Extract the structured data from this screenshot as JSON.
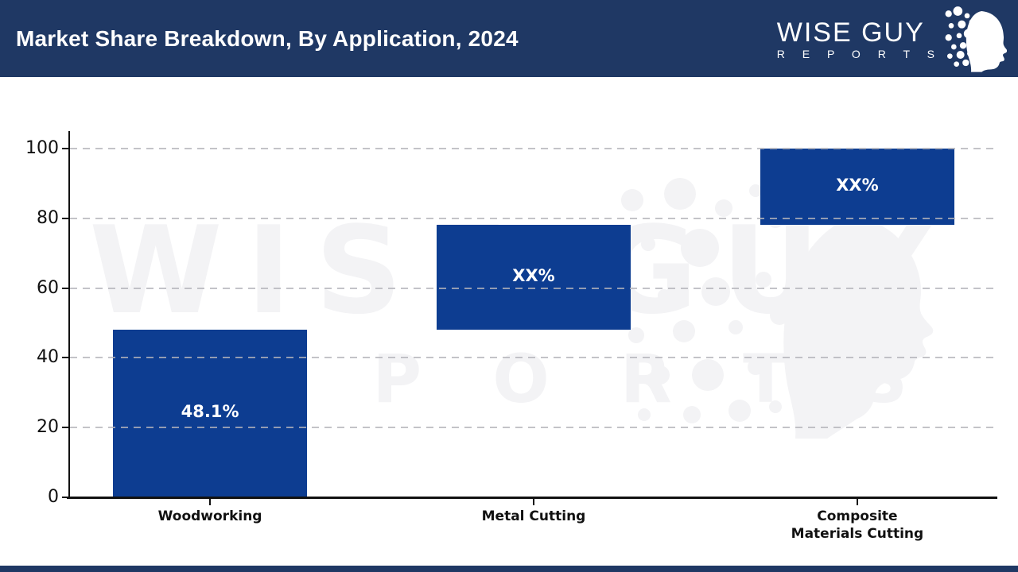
{
  "header": {
    "title": "Market Share Breakdown, By Application, 2024",
    "logo": {
      "line1": "WISE GUY",
      "line2": "R E P O R T S"
    }
  },
  "watermark": {
    "line1": "WISE GUY",
    "line2": "R E P O R T S"
  },
  "chart_data": {
    "type": "bar",
    "subtype": "waterfall",
    "title": "Market Share Breakdown, By Application, 2024",
    "xlabel": "",
    "ylabel": "",
    "categories": [
      "Woodworking",
      "Metal Cutting",
      "Composite\nMaterials Cutting"
    ],
    "segments": [
      {
        "category": "Woodworking",
        "start": 0,
        "end": 48.1,
        "label": "48.1%"
      },
      {
        "category": "Metal Cutting",
        "start": 48.1,
        "end": 78.1,
        "label": "XX%"
      },
      {
        "category": "Composite\nMaterials Cutting",
        "start": 78.1,
        "end": 100,
        "label": "XX%"
      }
    ],
    "yticks": [
      0,
      20,
      40,
      60,
      80,
      100
    ],
    "ylim": [
      0,
      105
    ],
    "grid": "dashed horizontal gridlines",
    "legend": "none",
    "bar_color": "#0d3d91",
    "bar_label_color": "#ffffff"
  },
  "colors": {
    "header_bg": "#1f3864",
    "footer_bg": "#1f3864",
    "bar": "#0d3d91",
    "axis": "#111111",
    "grid": "#b4b4ba",
    "watermark": "#f3f3f5"
  }
}
